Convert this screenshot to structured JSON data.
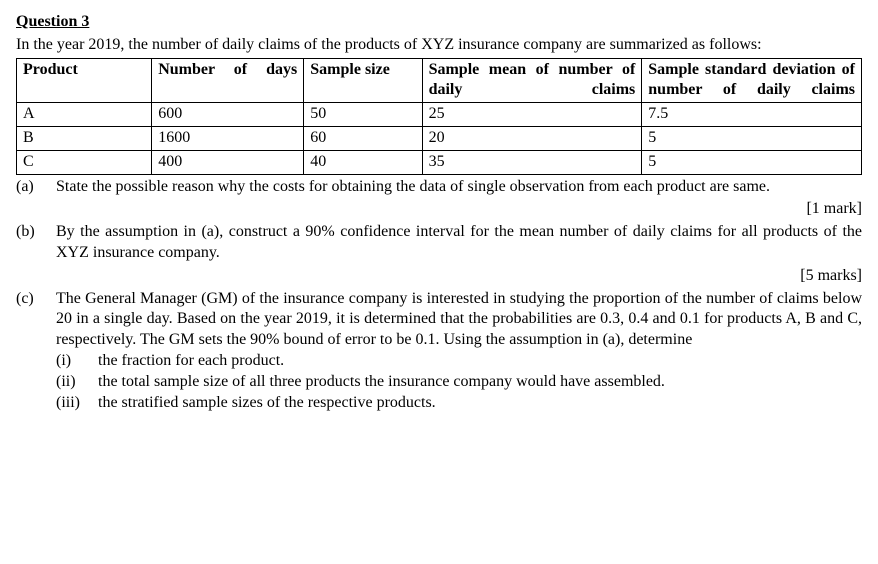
{
  "title": "Question 3",
  "intro": "In the year 2019, the number of daily claims of the products of XYZ insurance company are summarized as follows:",
  "table": {
    "headers": {
      "product": "Product",
      "days": "Number of days",
      "size": "Sample size",
      "mean": "Sample mean of number of daily claims",
      "sd": "Sample standard deviation of number of daily claims"
    },
    "rows": [
      {
        "product": "A",
        "days": "600",
        "size": "50",
        "mean": "25",
        "sd": "7.5"
      },
      {
        "product": "B",
        "days": "1600",
        "size": "60",
        "mean": "20",
        "sd": "5"
      },
      {
        "product": "C",
        "days": "400",
        "size": "40",
        "mean": "35",
        "sd": "5"
      }
    ]
  },
  "parts": {
    "a": {
      "label": "(a)",
      "text": "State the possible reason why the costs for obtaining the data of single observation from each product are same.",
      "marks": "[1 mark]"
    },
    "b": {
      "label": "(b)",
      "text": "By the assumption in (a), construct a 90% confidence interval for the mean number of daily claims for all products of the XYZ insurance company.",
      "marks": "[5 marks]"
    },
    "c": {
      "label": "(c)",
      "text": "The General Manager (GM) of the insurance company is interested in studying the proportion of the number of claims below 20 in a single day. Based on the year 2019, it is determined that the probabilities are 0.3, 0.4 and 0.1 for products A, B and C, respectively. The GM sets the 90% bound of error to be 0.1. Using the assumption in (a), determine",
      "subs": {
        "i": {
          "label": "(i)",
          "text": "the fraction for each product."
        },
        "ii": {
          "label": "(ii)",
          "text": "the total sample size of all three products the insurance company would have assembled."
        },
        "iii": {
          "label": "(iii)",
          "text": "the stratified sample sizes of the respective products."
        }
      }
    }
  }
}
